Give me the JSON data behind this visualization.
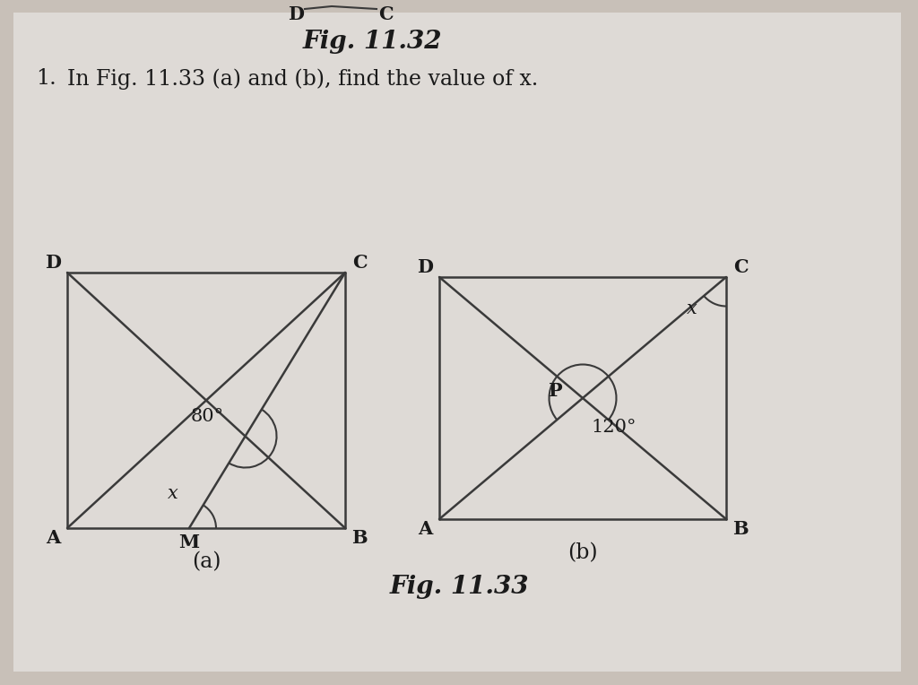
{
  "background_color": "#c8c0b8",
  "page_color": "#e8e4e0",
  "fig_title": "Fig. 11.33",
  "fig_prev_title": "Fig. 11.32",
  "question_text": "In Fig. 11.33 (a) and (b), find the value of x.",
  "fig_a_label": "(a)",
  "fig_b_label": "(b)",
  "fig_a_angle_80": "80°",
  "fig_a_angle_x": "x",
  "fig_b_angle_120": "120°",
  "fig_b_angle_x": "x",
  "line_color": "#3a3a3a",
  "text_color": "#1a1a1a",
  "font_size_title": 20,
  "font_size_question": 17,
  "font_size_labels": 15,
  "font_size_angles": 13
}
